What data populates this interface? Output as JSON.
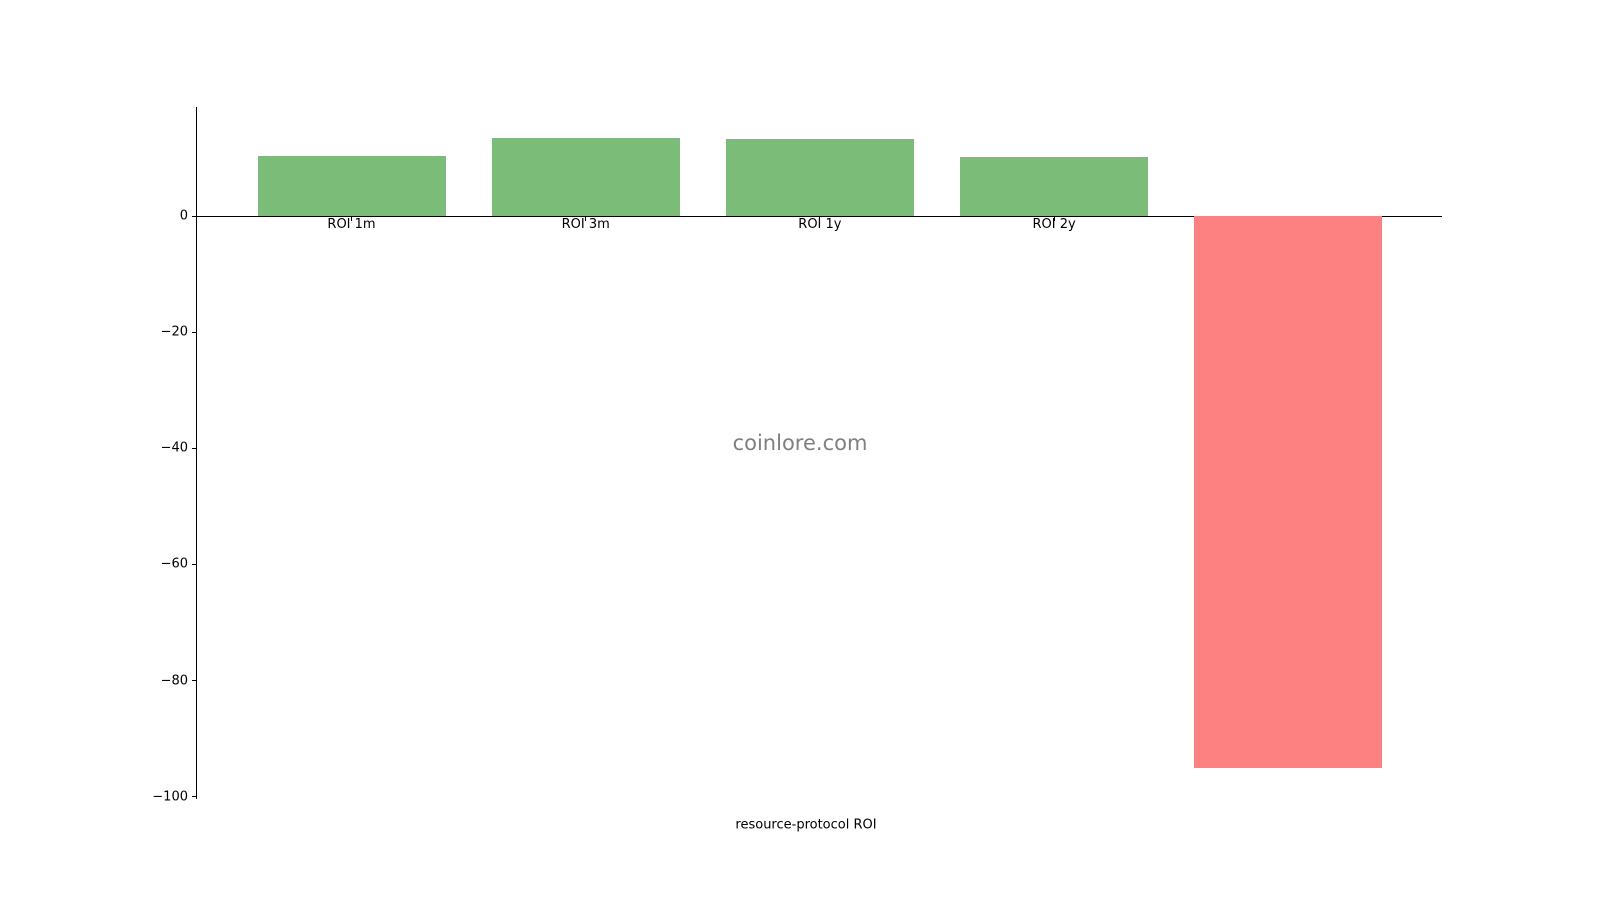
{
  "watermark": "coinlore.com",
  "chart_data": {
    "type": "bar",
    "categories": [
      "ROI 1m",
      "ROI 3m",
      "ROI 1y",
      "ROI 2y",
      ""
    ],
    "values": [
      10.3,
      13.4,
      13.3,
      10.2,
      -95
    ],
    "title": "",
    "xlabel": "resource-protocol ROI",
    "ylabel": "",
    "ylim": [
      -100.4,
      18.8
    ],
    "yticks": [
      0,
      -20,
      -40,
      -60,
      -80,
      -100
    ],
    "ytick_labels": [
      "0",
      "−20",
      "−40",
      "−60",
      "−80",
      "−100"
    ],
    "grid": false,
    "legend": false,
    "positive_color": "#7abc78",
    "negative_color": "#fd8181",
    "axis_color": "#000000",
    "watermark_color": "#808080"
  }
}
